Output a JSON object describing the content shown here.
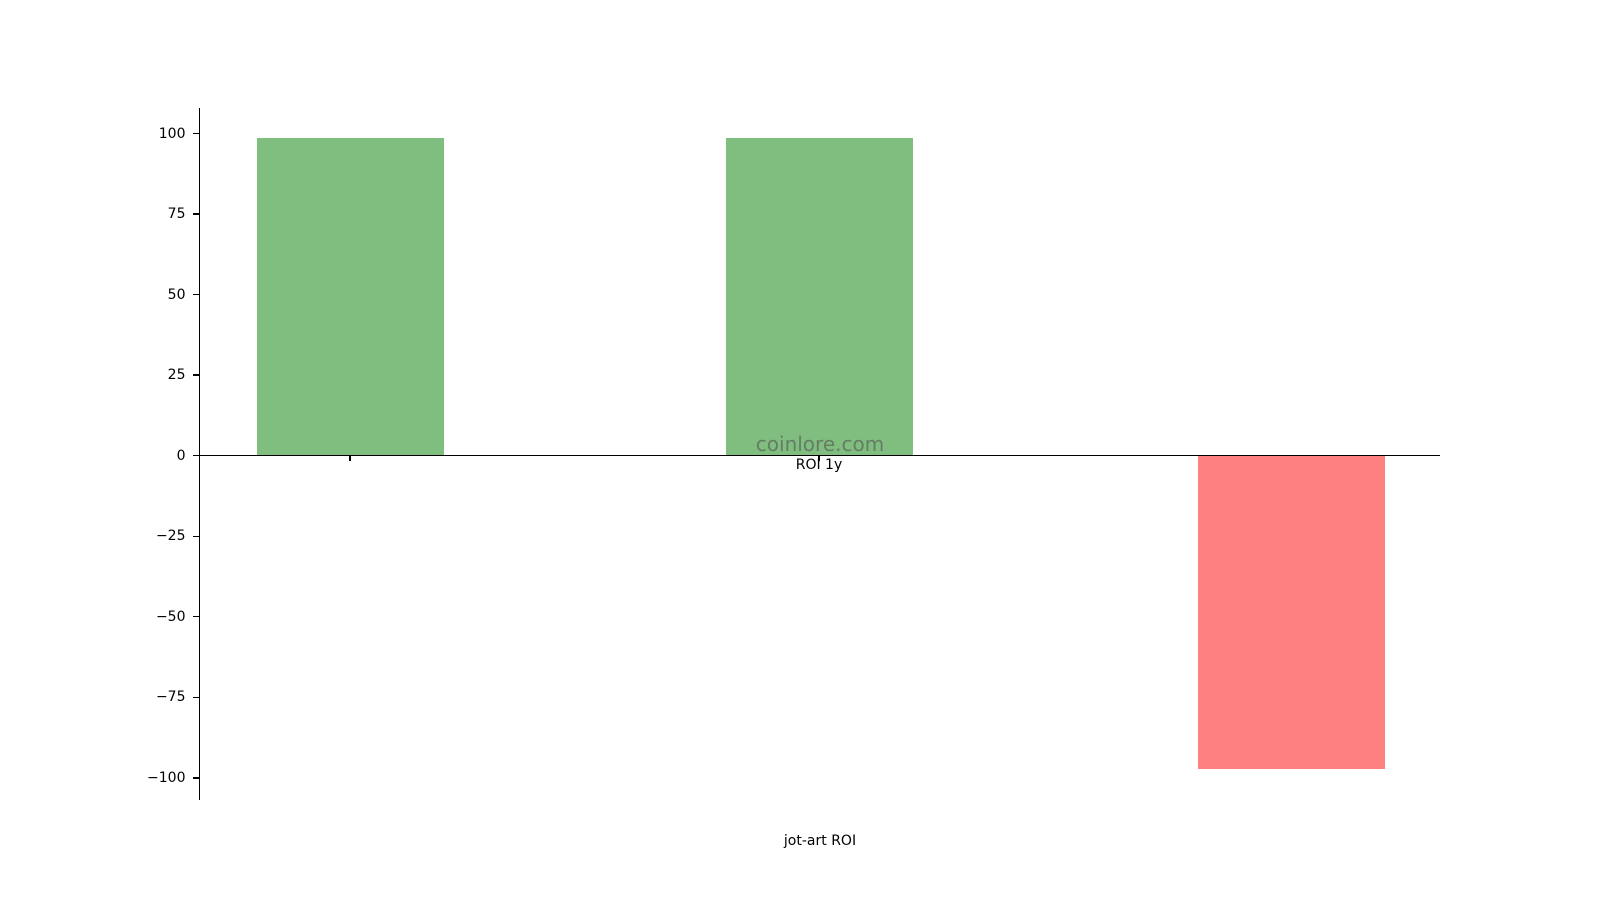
{
  "chart_data": {
    "type": "bar",
    "title": "",
    "xlabel": "jot-art ROI",
    "ylabel": "",
    "categories": [
      "",
      "ROI 1y",
      ""
    ],
    "values": [
      98.5,
      98.5,
      -97
    ],
    "bar_colors": [
      "#7fbe7f",
      "#7fbe7f",
      "#ff8080"
    ],
    "yticks": [
      100,
      75,
      50,
      25,
      0,
      -25,
      -50,
      -75,
      -100
    ],
    "ytick_labels": [
      "100",
      "75",
      "50",
      "25",
      "0",
      "−25",
      "−50",
      "−75",
      "−100"
    ],
    "ylim": [
      -107,
      108
    ],
    "grid": false,
    "legend": false,
    "watermark": "coinlore.com",
    "colors": {
      "axis": "#000000",
      "tick_label": "#000000",
      "watermark": "#8c8c8c",
      "positive_bar": "#7fbe7f",
      "negative_bar": "#ff8080",
      "background": "#ffffff"
    }
  }
}
